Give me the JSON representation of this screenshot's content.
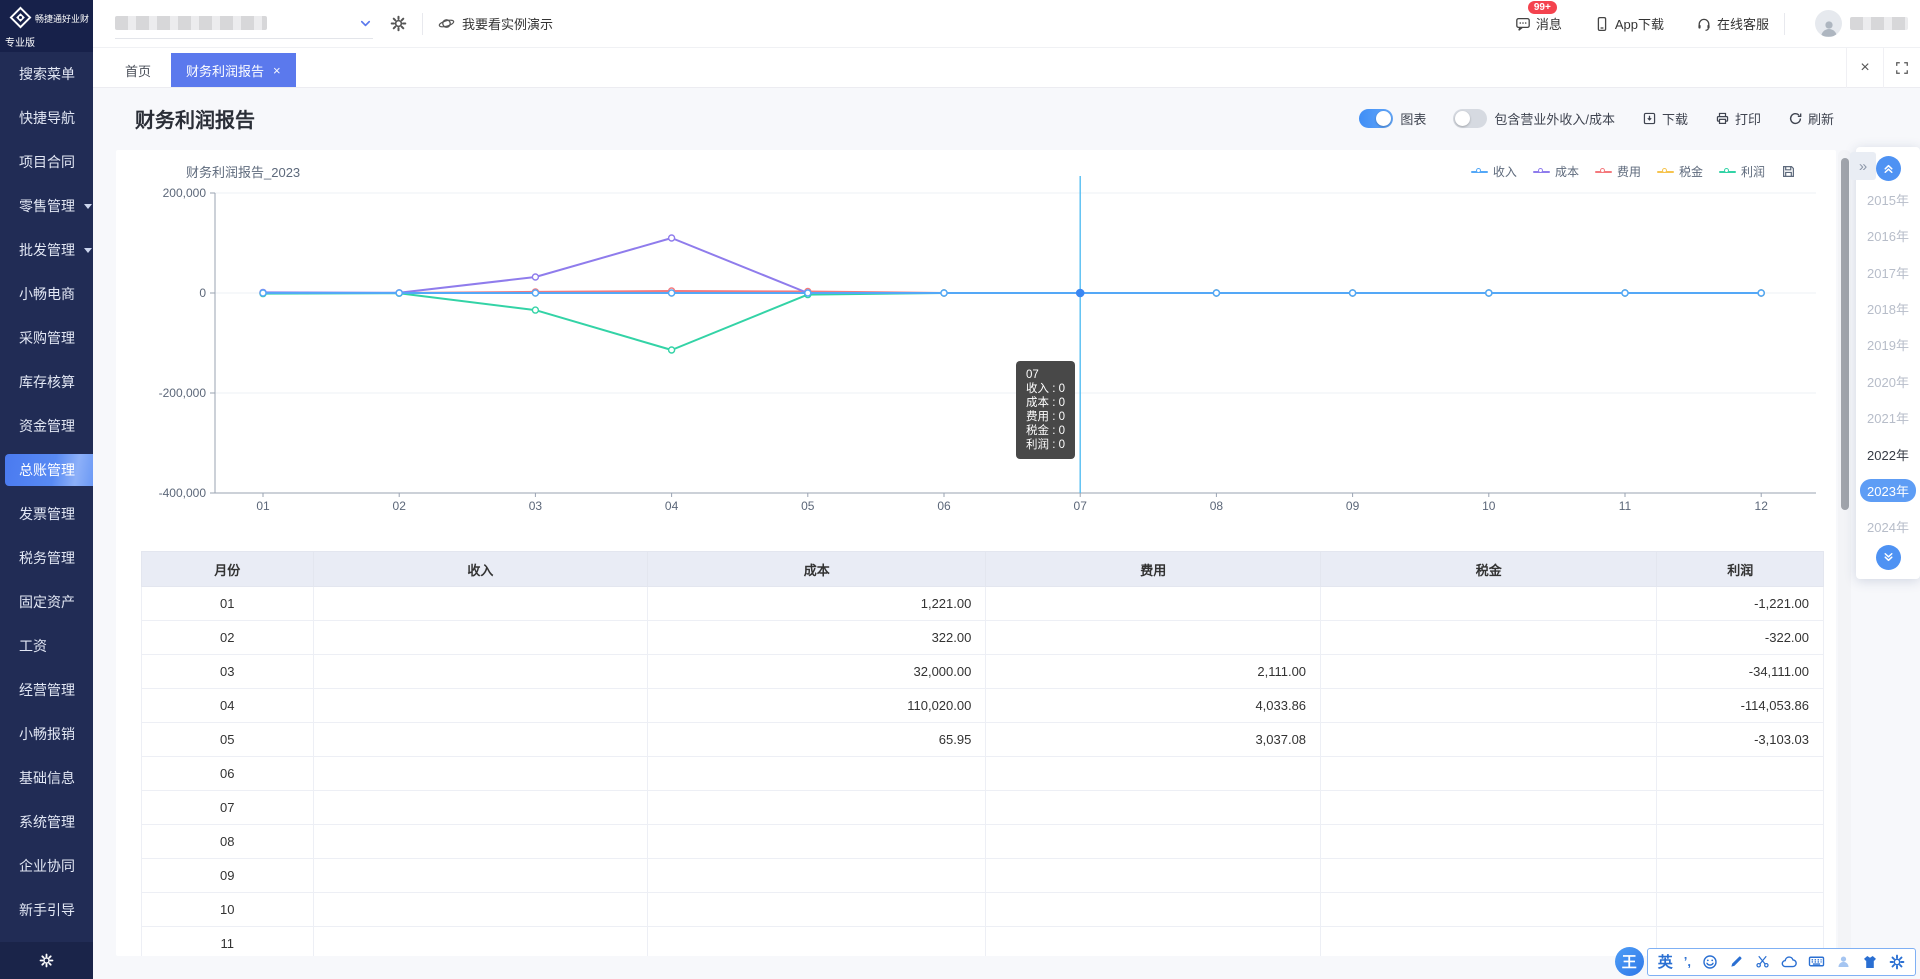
{
  "app": {
    "logo_title": "畅捷通好业财",
    "edition": "专业版"
  },
  "topbar": {
    "demo_link": "我要看实例演示",
    "messages_label": "消息",
    "messages_badge": "99+",
    "app_download_label": "App下载",
    "support_label": "在线客服"
  },
  "tabs": {
    "items": [
      {
        "label": "首页",
        "active": false,
        "closable": false
      },
      {
        "label": "财务利润报告",
        "active": true,
        "closable": true
      }
    ]
  },
  "page": {
    "title": "财务利润报告",
    "toggles": [
      {
        "label": "图表",
        "on": true
      },
      {
        "label": "包含营业外收入/成本",
        "on": false
      }
    ],
    "actions": [
      {
        "name": "download",
        "label": "下载"
      },
      {
        "name": "print",
        "label": "打印"
      },
      {
        "name": "refresh",
        "label": "刷新"
      }
    ]
  },
  "sidebar": {
    "items": [
      {
        "label": "搜索菜单"
      },
      {
        "label": "快捷导航"
      },
      {
        "label": "项目合同"
      },
      {
        "label": "零售管理",
        "expandable": true
      },
      {
        "label": "批发管理",
        "expandable": true
      },
      {
        "label": "小畅电商"
      },
      {
        "label": "采购管理"
      },
      {
        "label": "库存核算"
      },
      {
        "label": "资金管理"
      },
      {
        "label": "总账管理",
        "active": true
      },
      {
        "label": "发票管理"
      },
      {
        "label": "税务管理"
      },
      {
        "label": "固定资产"
      },
      {
        "label": "工资"
      },
      {
        "label": "经营管理"
      },
      {
        "label": "小畅报销"
      },
      {
        "label": "基础信息"
      },
      {
        "label": "系统管理"
      },
      {
        "label": "企业协同"
      },
      {
        "label": "新手引导"
      }
    ]
  },
  "chart_data": {
    "type": "line",
    "title": "财务利润报告_2023",
    "x": [
      "01",
      "02",
      "03",
      "04",
      "05",
      "06",
      "07",
      "08",
      "09",
      "10",
      "11",
      "12"
    ],
    "series": [
      {
        "name": "收入",
        "color": "#54a8f7",
        "values": [
          0,
          0,
          0,
          0,
          0,
          0,
          0,
          0,
          0,
          0,
          0,
          0
        ]
      },
      {
        "name": "成本",
        "color": "#8f7cec",
        "values": [
          1221,
          322,
          32000,
          110020,
          65.95,
          0,
          0,
          0,
          0,
          0,
          0,
          0
        ]
      },
      {
        "name": "费用",
        "color": "#f4797d",
        "values": [
          0,
          0,
          2111,
          4033.86,
          3037.08,
          0,
          0,
          0,
          0,
          0,
          0,
          0
        ]
      },
      {
        "name": "税金",
        "color": "#f6c44f",
        "values": [
          0,
          0,
          0,
          0,
          0,
          0,
          0,
          0,
          0,
          0,
          0,
          0
        ]
      },
      {
        "name": "利润",
        "color": "#33d3a6",
        "values": [
          -1221,
          -322,
          -34111,
          -114053.86,
          -3103.03,
          0,
          0,
          0,
          0,
          0,
          0,
          0
        ]
      }
    ],
    "ylim": [
      -400000,
      200000
    ],
    "ytick_values": [
      200000,
      0,
      -200000,
      -400000
    ],
    "ytick_labels": [
      "200,000",
      "0",
      "-200,000",
      "-400,000"
    ],
    "legend_position": "top-right",
    "grid": true,
    "crosshair_x": "07",
    "tooltip": {
      "title": "07",
      "lines": [
        "收入 : 0",
        "成本 : 0",
        "费用 : 0",
        "税金 : 0",
        "利润 : 0"
      ]
    }
  },
  "table": {
    "columns": [
      "月份",
      "收入",
      "成本",
      "费用",
      "税金",
      "利润"
    ],
    "col_widths_pct": [
      10.2,
      19.9,
      20.1,
      19.9,
      20.0,
      9.9
    ],
    "rows": [
      [
        "01",
        "",
        "1,221.00",
        "",
        "",
        "-1,221.00"
      ],
      [
        "02",
        "",
        "322.00",
        "",
        "",
        "-322.00"
      ],
      [
        "03",
        "",
        "32,000.00",
        "2,111.00",
        "",
        "-34,111.00"
      ],
      [
        "04",
        "",
        "110,020.00",
        "4,033.86",
        "",
        "-114,053.86"
      ],
      [
        "05",
        "",
        "65.95",
        "3,037.08",
        "",
        "-3,103.03"
      ],
      [
        "06",
        "",
        "",
        "",
        "",
        ""
      ],
      [
        "07",
        "",
        "",
        "",
        "",
        ""
      ],
      [
        "08",
        "",
        "",
        "",
        "",
        ""
      ],
      [
        "09",
        "",
        "",
        "",
        "",
        ""
      ],
      [
        "10",
        "",
        "",
        "",
        "",
        ""
      ],
      [
        "11",
        "",
        "",
        "",
        "",
        ""
      ]
    ]
  },
  "year_panel": {
    "years": [
      {
        "label": "2015年"
      },
      {
        "label": "2016年"
      },
      {
        "label": "2017年"
      },
      {
        "label": "2018年"
      },
      {
        "label": "2019年"
      },
      {
        "label": "2020年"
      },
      {
        "label": "2021年"
      },
      {
        "label": "2022年",
        "emphasis": true
      },
      {
        "label": "2023年",
        "selected": true
      },
      {
        "label": "2024年"
      }
    ]
  },
  "ime": {
    "logo_text": "王",
    "lang_label": "英",
    "punct_label": "’,",
    "icons": [
      "smiley",
      "pencil",
      "scissors",
      "cloud",
      "keyboard",
      "person",
      "shirt",
      "gear"
    ]
  },
  "colors": {
    "accent": "#5b79ed",
    "toggle_on": "#4b9af8",
    "badge": "#f4434e",
    "crosshair": "#55bdf2",
    "year_selected": "#5e9df5"
  }
}
